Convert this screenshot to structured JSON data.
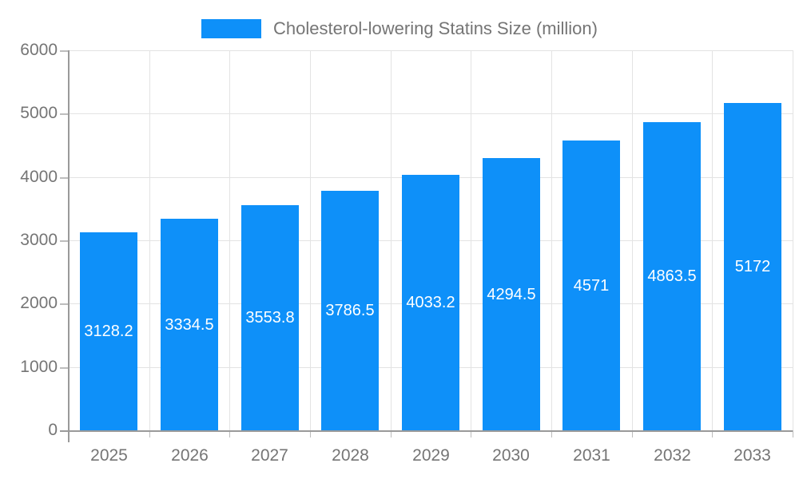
{
  "chart_data": {
    "type": "bar",
    "title": "Cholesterol-lowering Statins Size (million)",
    "categories": [
      "2025",
      "2026",
      "2027",
      "2028",
      "2029",
      "2030",
      "2031",
      "2032",
      "2033"
    ],
    "values": [
      3128.2,
      3334.5,
      3553.8,
      3786.5,
      4033.2,
      4294.5,
      4571,
      4863.5,
      5172
    ],
    "xlabel": "",
    "ylabel": "",
    "ylim": [
      0,
      6000
    ],
    "yticks": [
      0,
      1000,
      2000,
      3000,
      4000,
      5000,
      6000
    ],
    "grid": true,
    "legend_position": "top",
    "bar_color": "#0e90f9",
    "value_label_color": "#ffffff",
    "text_color": "#757575",
    "grid_color": "#e3e3e3",
    "axis_color": "#9a9a9a"
  }
}
